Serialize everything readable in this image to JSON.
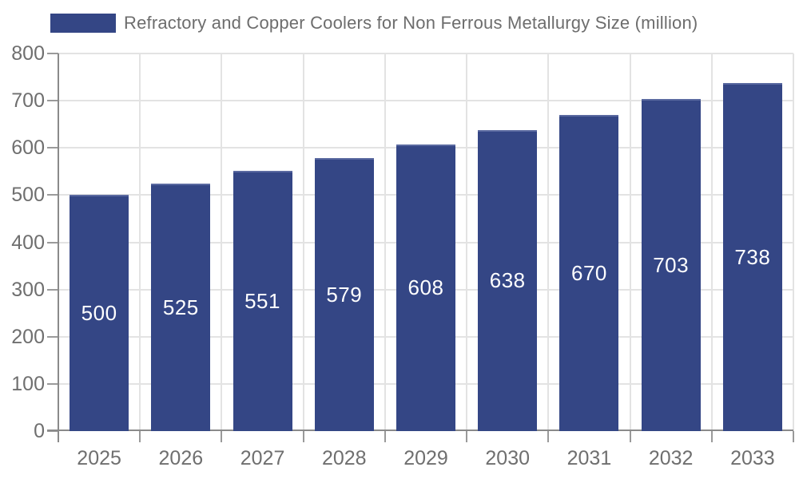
{
  "chart_data": {
    "type": "bar",
    "title": "Refractory and Copper Coolers for Non Ferrous Metallurgy Size (million)",
    "categories": [
      "2025",
      "2026",
      "2027",
      "2028",
      "2029",
      "2030",
      "2031",
      "2032",
      "2033"
    ],
    "values": [
      500,
      525,
      551,
      579,
      608,
      638,
      670,
      703,
      738
    ],
    "xlabel": "",
    "ylabel": "",
    "ylim": [
      0,
      800
    ],
    "ytick_step": 100,
    "grid": true,
    "legend_position": "top-left",
    "bar_labels_inside": true
  },
  "colors": {
    "bar": "#344685",
    "bar_top_edge": "#5a69a0",
    "bar_label": "#ffffff",
    "grid": "#e3e3e3",
    "axis": "#8a8a8a",
    "tick": "#9a9a9a",
    "tick_label": "#6f6f6f",
    "title_text": "#6d6d6d"
  }
}
